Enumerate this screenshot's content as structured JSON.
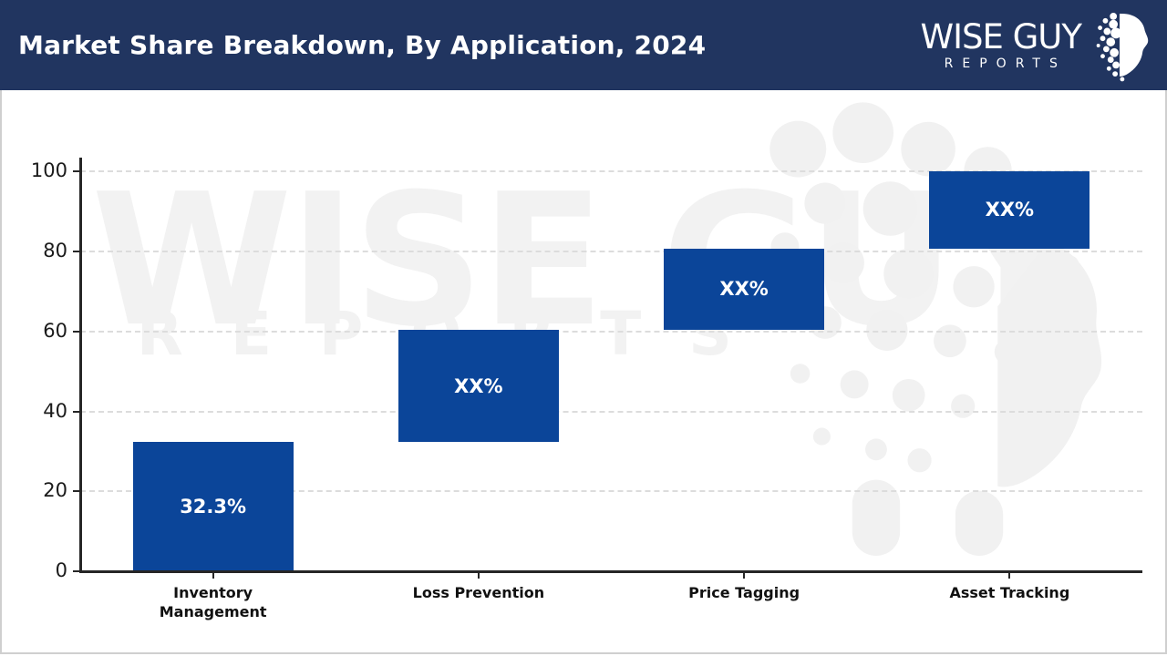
{
  "page": {
    "background": "#ffffff",
    "frame_border_color": "#cfcfcf"
  },
  "header": {
    "bg_color": "#213560",
    "title": "Market Share Breakdown, By Application, 2024",
    "logo": {
      "line1": "WISE GUY",
      "line2": "REPORTS"
    }
  },
  "watermark": {
    "line1": "WISE GUY",
    "line2": "REPORTS"
  },
  "chart_data": {
    "type": "bar",
    "variant": "waterfall",
    "title": "Market Share Breakdown, By Application, 2024",
    "categories": [
      "Inventory\nManagement",
      "Loss Prevention",
      "Price Tagging",
      "Asset Tracking"
    ],
    "segments": [
      {
        "category": "Inventory Management",
        "start": 0,
        "end": 32.3,
        "label": "32.3%"
      },
      {
        "category": "Loss Prevention",
        "start": 32.3,
        "end": 60.4,
        "label": "XX%"
      },
      {
        "category": "Price Tagging",
        "start": 60.4,
        "end": 80.8,
        "label": "XX%"
      },
      {
        "category": "Asset Tracking",
        "start": 80.8,
        "end": 100,
        "label": "XX%"
      }
    ],
    "xlabel": "",
    "ylabel": "",
    "yticks": [
      0,
      20,
      40,
      60,
      80,
      100
    ],
    "ylim": [
      0,
      103.5
    ],
    "grid": "horizontal-dashed",
    "legend": "none",
    "colors": {
      "bar": "#0b4599",
      "bar_label": "#ffffff",
      "axis": "#262626",
      "grid": "#dcdcdc",
      "tick_label": "#1a1a1a"
    }
  }
}
